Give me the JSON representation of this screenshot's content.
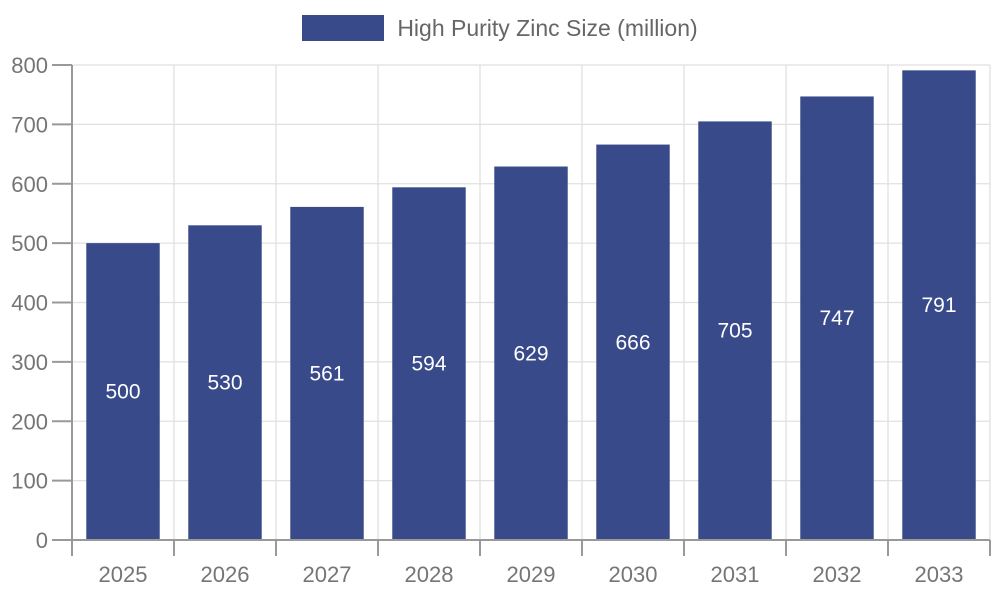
{
  "legend": {
    "label": "High Purity Zinc Size (million)"
  },
  "chart_data": {
    "type": "bar",
    "title": "",
    "xlabel": "",
    "ylabel": "",
    "categories": [
      "2025",
      "2026",
      "2027",
      "2028",
      "2029",
      "2030",
      "2031",
      "2032",
      "2033"
    ],
    "series": [
      {
        "name": "High Purity Zinc Size (million)",
        "values": [
          500,
          530,
          561,
          594,
          629,
          666,
          705,
          747,
          791
        ]
      }
    ],
    "ylim": [
      0,
      800
    ],
    "ytick_step": 100,
    "yticks": [
      0,
      100,
      200,
      300,
      400,
      500,
      600,
      700,
      800
    ],
    "grid": true,
    "legend_position": "top-center",
    "bar_value_labels": "inside-center",
    "colors": {
      "bar": "#384a8a",
      "bar_label": "#ffffff",
      "axis_line": "#999999",
      "grid_line": "#e0e0e0",
      "tick_label": "#757575",
      "legend_text": "#666666"
    }
  }
}
